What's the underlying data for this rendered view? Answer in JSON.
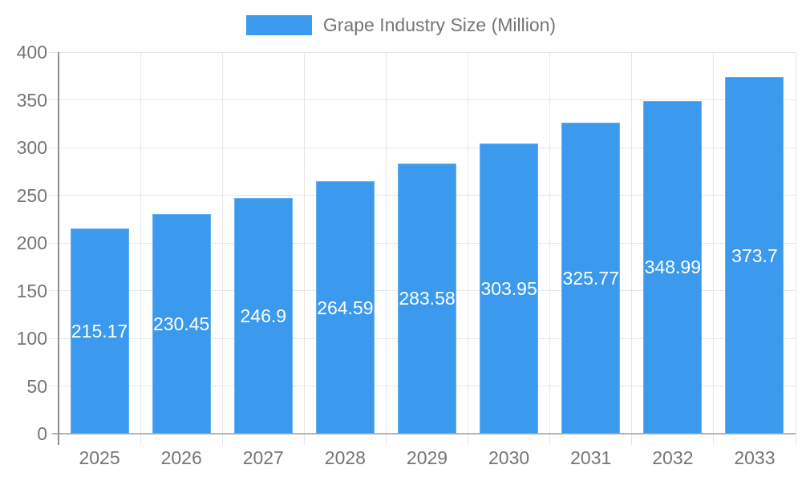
{
  "legend": {
    "label": "Grape Industry Size (Million)"
  },
  "colors": {
    "bar": "#3B99EE",
    "grid": "#E6E6E6",
    "axis_line": "#8F8F8F",
    "baseline": "#B3B3B3",
    "text": "#757575",
    "value_label": "#FFFFFF",
    "background": "#FFFFFF"
  },
  "chart_data": {
    "type": "bar",
    "title": "Grape Industry Size (Million)",
    "categories": [
      "2025",
      "2026",
      "2027",
      "2028",
      "2029",
      "2030",
      "2031",
      "2032",
      "2033"
    ],
    "series": [
      {
        "name": "Grape Industry Size (Million)",
        "values": [
          215.17,
          230.45,
          246.9,
          264.59,
          283.58,
          303.95,
          325.77,
          348.99,
          373.7
        ]
      }
    ],
    "xlabel": "",
    "ylabel": "",
    "ylim": [
      0,
      400
    ],
    "yticks": [
      0,
      50,
      100,
      150,
      200,
      250,
      300,
      350,
      400
    ],
    "grid": true,
    "legend_position": "top",
    "value_label_position": "inside-center"
  }
}
